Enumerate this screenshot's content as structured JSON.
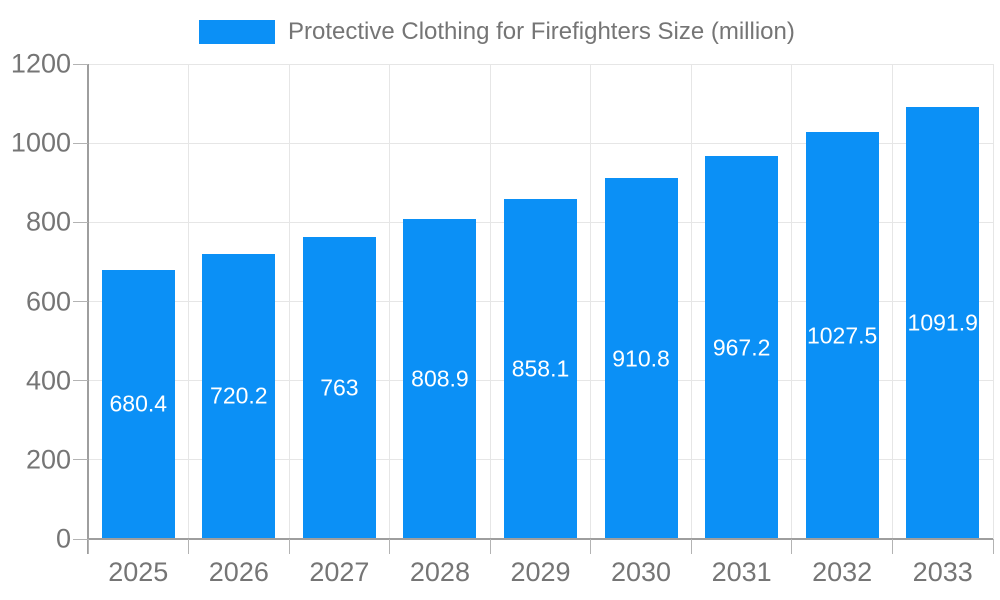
{
  "legend": {
    "label": "Protective Clothing for Firefighters Size (million)",
    "swatch_color": "#0b90f6"
  },
  "chart_data": {
    "type": "bar",
    "title": "Protective Clothing for Firefighters Size (million)",
    "categories": [
      "2025",
      "2026",
      "2027",
      "2028",
      "2029",
      "2030",
      "2031",
      "2032",
      "2033"
    ],
    "values": [
      680.4,
      720.2,
      763,
      808.9,
      858.1,
      910.8,
      967.2,
      1027.5,
      1091.9
    ],
    "value_labels": [
      "680.4",
      "720.2",
      "763",
      "808.9",
      "858.1",
      "910.8",
      "967.2",
      "1027.5",
      "1091.9"
    ],
    "xlabel": "",
    "ylabel": "",
    "ylim": [
      0,
      1200
    ],
    "yticks": [
      0,
      200,
      400,
      600,
      800,
      1000,
      1200
    ],
    "grid": true,
    "legend_position": "top",
    "colors": {
      "bar": "#0b90f6",
      "bar_label": "#ffffff",
      "axis_text": "#757575",
      "grid": "#e6e6e6",
      "axis_line": "#9e9e9e",
      "tick": "#b3b3b3",
      "background": "#ffffff"
    }
  }
}
